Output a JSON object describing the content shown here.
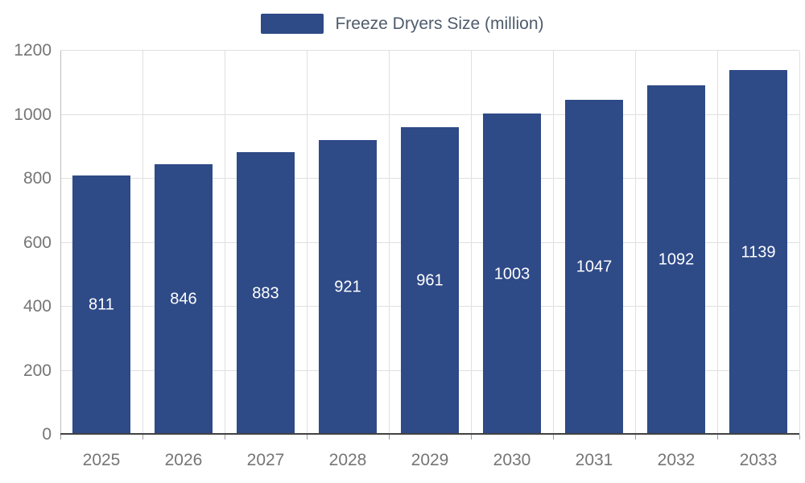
{
  "legend": {
    "label": "Freeze Dryers Size (million)"
  },
  "chart_data": {
    "type": "bar",
    "title": "",
    "categories": [
      "2025",
      "2026",
      "2027",
      "2028",
      "2029",
      "2030",
      "2031",
      "2032",
      "2033"
    ],
    "values": [
      811,
      846,
      883,
      921,
      961,
      1003,
      1047,
      1092,
      1139
    ],
    "series_name": "Freeze Dryers Size (million)",
    "xlabel": "",
    "ylabel": "",
    "ylim": [
      0,
      1200
    ],
    "yticks": [
      0,
      200,
      400,
      600,
      800,
      1000,
      1200
    ],
    "grid": true,
    "legend_position": "top",
    "bar_labels_visible": true,
    "colors": {
      "bar": "#2e4a87",
      "bar_label": "#ffffff",
      "axis_text": "#757575",
      "grid_line": "#e0e0e0",
      "x_axis_line": "#424242",
      "legend_text": "#4e5b6c",
      "background": "#ffffff"
    }
  }
}
